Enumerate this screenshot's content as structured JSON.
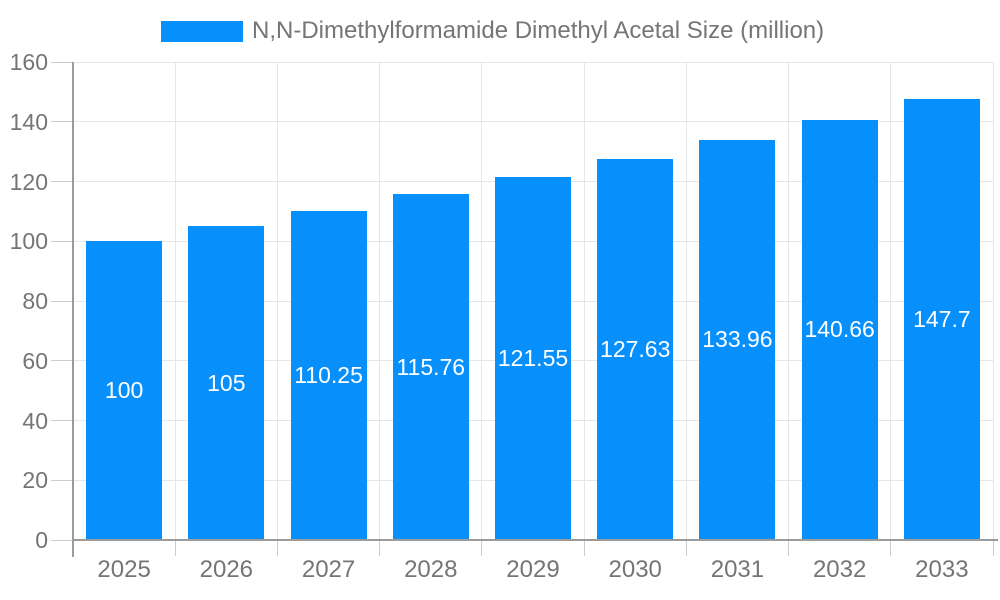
{
  "legend": {
    "label": "N,N-Dimethylformamide Dimethyl Acetal Size (million)"
  },
  "colors": {
    "bar": "#0790fb",
    "grid": "#e6e6e6",
    "tick": "#cccccc",
    "axis": "#9b9b9b",
    "axis_text": "#757575",
    "value_text": "#ffffff",
    "background": "#ffffff"
  },
  "chart_data": {
    "type": "bar",
    "title": "N,N-Dimethylformamide Dimethyl Acetal Size (million)",
    "categories": [
      "2025",
      "2026",
      "2027",
      "2028",
      "2029",
      "2030",
      "2031",
      "2032",
      "2033"
    ],
    "values": [
      100,
      105,
      110.25,
      115.76,
      121.55,
      127.63,
      133.96,
      140.66,
      147.7
    ],
    "value_labels": [
      "100",
      "105",
      "110.25",
      "115.76",
      "121.55",
      "127.63",
      "133.96",
      "140.66",
      "147.7"
    ],
    "series_name": "N,N-Dimethylformamide Dimethyl Acetal Size (million)",
    "xlabel": "",
    "ylabel": "",
    "ylim": [
      0,
      160
    ],
    "y_ticks": [
      0,
      20,
      40,
      60,
      80,
      100,
      120,
      140,
      160
    ],
    "grid": "horizontal and vertical category boundaries",
    "legend_position": "top-center",
    "value_label_position": "inside-center"
  }
}
